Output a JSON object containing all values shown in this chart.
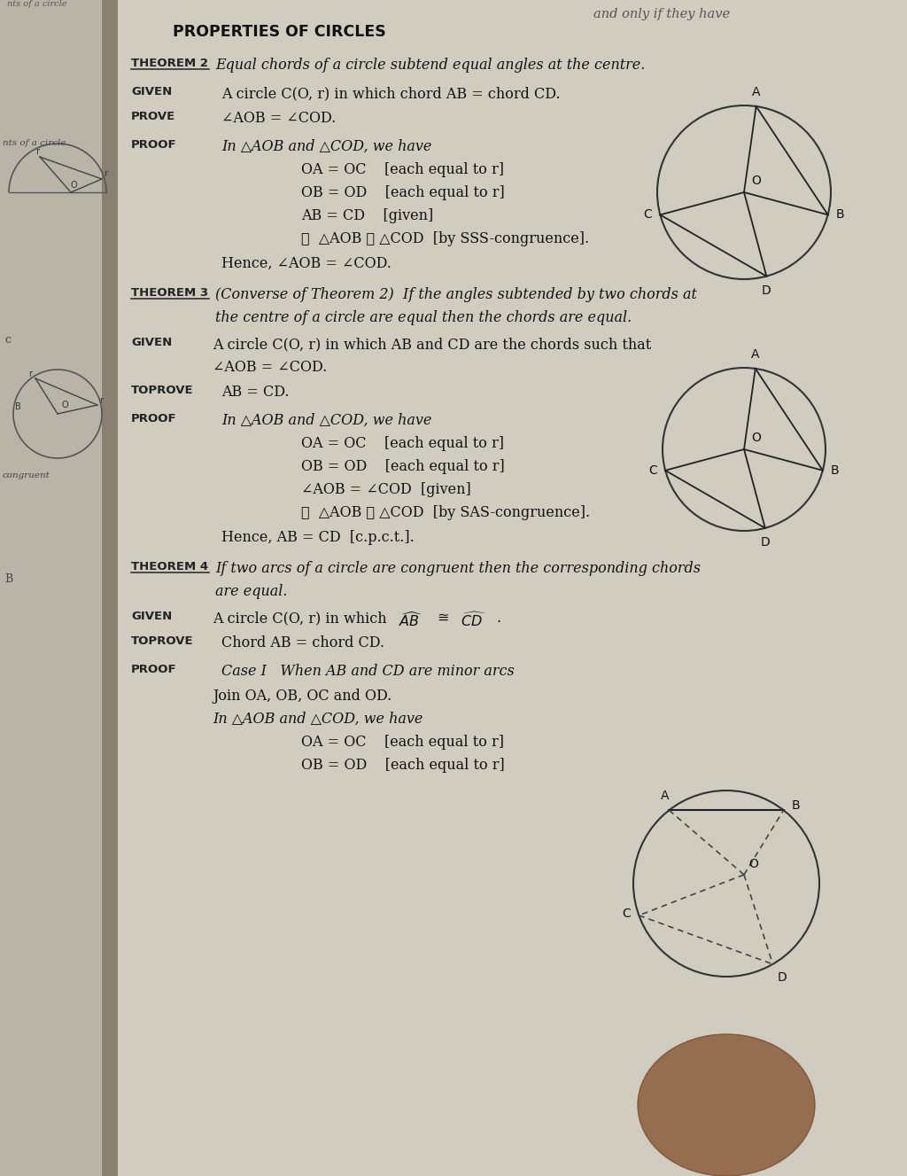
{
  "bg_paper": "#ccc8bb",
  "bg_left_page": "#c5c1b5",
  "bg_right_page": "#d2cec2",
  "bg_gutter": "#7a7268",
  "text_dark": "#1a1a1a",
  "text_mid": "#333333",
  "title": "PROPERTIES OF CIRCLES",
  "top_right_text": "and only if they have",
  "thm2_header": "THEOREM 2",
  "thm2_stmt": "Equal chords of a circle subtend equal angles at the centre.",
  "thm2_given_label": "GIVEN",
  "thm2_given": "A circle C(O, r) in which chord AB = chord CD.",
  "thm2_prove_label": "PROVE",
  "thm2_prove": "∠AOB = ∠COD.",
  "thm2_proof_label": "PROOF",
  "thm2_proof_intro": "In △AOB and △COD, we have",
  "thm2_proof_lines": [
    "OA = OC    [each equal to r]",
    "OB = OD    [each equal to r]",
    "AB = CD    [given]",
    "∴  △AOB ≅ △COD  [by SSS-congruence]."
  ],
  "thm2_hence": "Hence, ∠AOB = ∠COD.",
  "thm3_header": "THEOREM 3",
  "thm3_stmt_line1": "(Converse of Theorem 2)  If the angles subtended by two chords at",
  "thm3_stmt_line2": "the centre of a circle are equal then the chords are equal.",
  "thm3_given_label": "GIVEN",
  "thm3_given_line1": "A circle C(O, r) in which AB and CD are the chords such that",
  "thm3_given_line2": "∠AOB = ∠COD.",
  "thm3_prove_label": "TOPROVE",
  "thm3_prove": "AB = CD.",
  "thm3_proof_label": "PROOF",
  "thm3_proof_intro": "In △AOB and △COD, we have",
  "thm3_proof_lines": [
    "OA = OC    [each equal to r]",
    "OB = OD    [each equal to r]",
    "∠AOB = ∠COD  [given]",
    "∴  △AOB ≅ △COD  [by SAS-congruence]."
  ],
  "thm3_hence": "Hence, AB = CD  [c.p.c.t.].",
  "thm4_header": "THEOREM 4",
  "thm4_stmt_line1": "If two arcs of a circle are congruent then the corresponding chords",
  "thm4_stmt_line2": "are equal.",
  "thm4_given_label": "GIVEN",
  "thm4_given": "A circle C(O, r) in which",
  "thm4_prove_label": "TOPROVE",
  "thm4_prove": "Chord AB = chord CD.",
  "thm4_proof_label": "PROOF",
  "thm4_case": "Case I   When AB and CD are minor arcs",
  "thm4_join": "Join OA, OB, OC and OD.",
  "thm4_proof_intro": "In △AOB and △COD, we have",
  "thm4_proof_lines": [
    "OA = OC    [each equal to r]",
    "OB = OD    [each equal to r]"
  ]
}
